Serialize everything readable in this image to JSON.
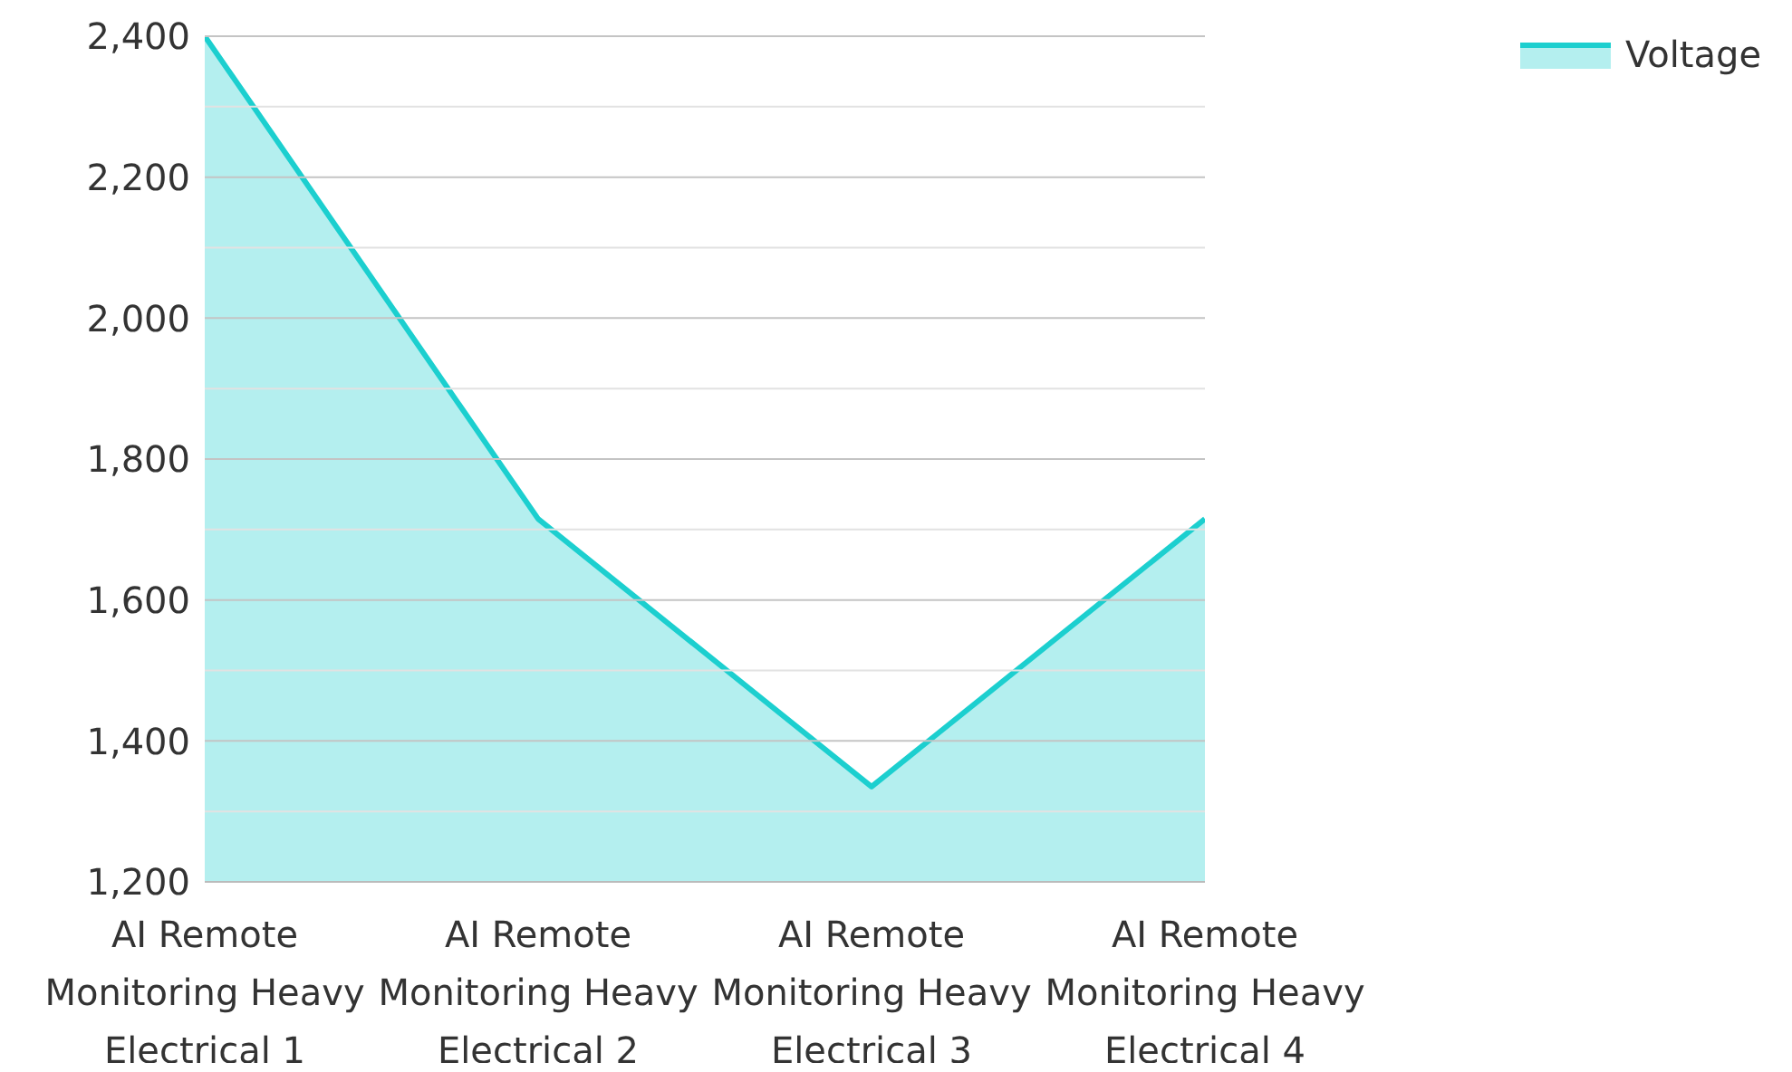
{
  "chart_data": {
    "type": "area",
    "categories": [
      "AI Remote Monitoring Heavy Electrical 1",
      "AI Remote Monitoring Heavy Electrical 2",
      "AI Remote Monitoring Heavy Electrical 3",
      "AI Remote Monitoring Heavy Electrical 4"
    ],
    "series": [
      {
        "name": "Voltage",
        "color": "#1ccfcf",
        "values": [
          2400,
          1715,
          1335,
          1715
        ]
      }
    ],
    "ylim": [
      1200,
      2400
    ],
    "yticks": [
      {
        "value": 1200,
        "label": "1,200"
      },
      {
        "value": 1300,
        "label": null
      },
      {
        "value": 1400,
        "label": "1,400"
      },
      {
        "value": 1500,
        "label": null
      },
      {
        "value": 1600,
        "label": "1,600"
      },
      {
        "value": 1700,
        "label": null
      },
      {
        "value": 1800,
        "label": "1,800"
      },
      {
        "value": 1900,
        "label": null
      },
      {
        "value": 2000,
        "label": "2,000"
      },
      {
        "value": 2100,
        "label": null
      },
      {
        "value": 2200,
        "label": "2,200"
      },
      {
        "value": 2300,
        "label": null
      },
      {
        "value": 2400,
        "label": "2,400"
      }
    ],
    "grid": "y",
    "legend": "top right",
    "marker": "none",
    "line_style": "solid"
  }
}
